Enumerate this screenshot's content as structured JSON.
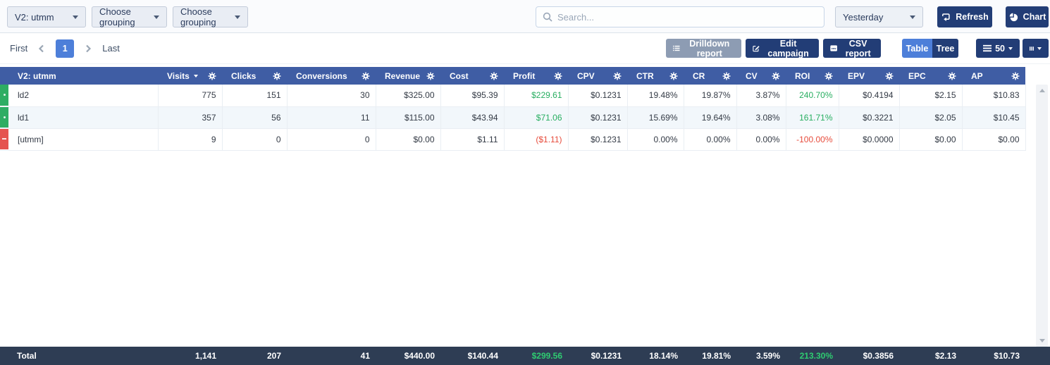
{
  "colors": {
    "header-blue": "#3f5da4",
    "navy": "#223d76",
    "active-blue": "#4d7fd9",
    "green": "#27ae60",
    "red": "#e74c3c",
    "total-bg": "#2e3d54",
    "total-green": "#2ecc71",
    "muted-btn": "#8d9cb3",
    "row-stripe": "#f2f7fb"
  },
  "toolbar": {
    "variable_select": "V2: utmm",
    "grouping1": "Choose grouping",
    "grouping2": "Choose grouping",
    "search_placeholder": "Search...",
    "date_range": "Yesterday",
    "refresh_label": "Refresh",
    "chart_label": "Chart"
  },
  "pagination": {
    "first": "First",
    "page": "1",
    "last": "Last"
  },
  "actions": {
    "drilldown": "Drilldown report",
    "edit_campaign": "Edit campaign",
    "csv_report": "CSV report",
    "table_view": "Table",
    "tree_view": "Tree",
    "page_size": "50"
  },
  "table": {
    "name_header": "V2: utmm",
    "sorted_by": "Visits",
    "columns": [
      "Visits",
      "Clicks",
      "Conversions",
      "Revenue",
      "Cost",
      "Profit",
      "CPV",
      "CTR",
      "CR",
      "CV",
      "ROI",
      "EPV",
      "EPC",
      "AP"
    ],
    "rows": [
      {
        "status": "green",
        "name": "ld2",
        "visits": "775",
        "clicks": "151",
        "conversions": "30",
        "revenue": "$325.00",
        "cost": "$95.39",
        "profit": "$229.61",
        "cpv": "$0.1231",
        "ctr": "19.48%",
        "cr": "19.87%",
        "cv": "3.87%",
        "roi": "240.70%",
        "epv": "$0.4194",
        "epc": "$2.15",
        "ap": "$10.83"
      },
      {
        "status": "green",
        "name": "ld1",
        "visits": "357",
        "clicks": "56",
        "conversions": "11",
        "revenue": "$115.00",
        "cost": "$43.94",
        "profit": "$71.06",
        "cpv": "$0.1231",
        "ctr": "15.69%",
        "cr": "19.64%",
        "cv": "3.08%",
        "roi": "161.71%",
        "epv": "$0.3221",
        "epc": "$2.05",
        "ap": "$10.45"
      },
      {
        "status": "red",
        "name": "[utmm]",
        "visits": "9",
        "clicks": "0",
        "conversions": "0",
        "revenue": "$0.00",
        "cost": "$1.11",
        "profit": "($1.11)",
        "cpv": "$0.1231",
        "ctr": "0.00%",
        "cr": "0.00%",
        "cv": "0.00%",
        "roi": "-100.00%",
        "epv": "$0.0000",
        "epc": "$0.00",
        "ap": "$0.00"
      }
    ],
    "total": {
      "label": "Total",
      "visits": "1,141",
      "clicks": "207",
      "conversions": "41",
      "revenue": "$440.00",
      "cost": "$140.44",
      "profit": "$299.56",
      "cpv": "$0.1231",
      "ctr": "18.14%",
      "cr": "19.81%",
      "cv": "3.59%",
      "roi": "213.30%",
      "epv": "$0.3856",
      "epc": "$2.13",
      "ap": "$10.73"
    }
  }
}
